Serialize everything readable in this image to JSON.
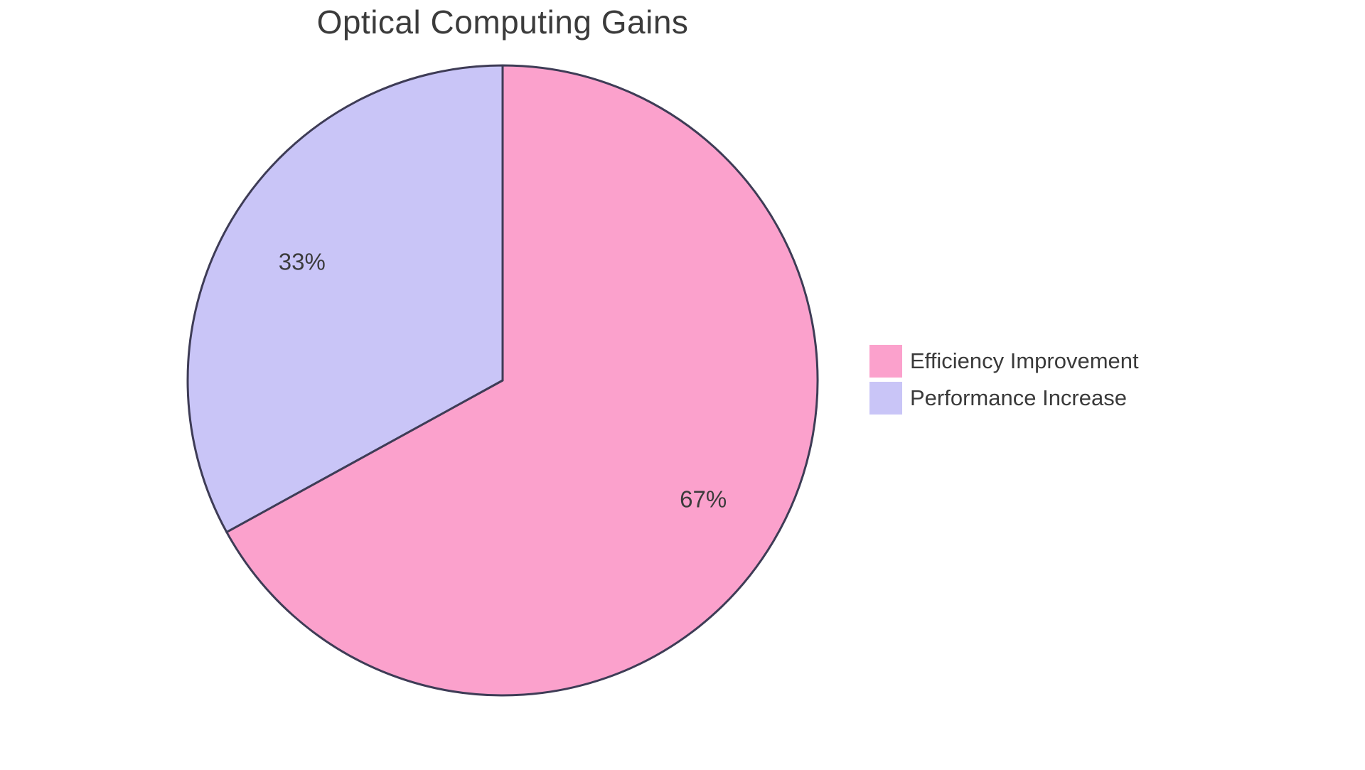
{
  "chart_data": {
    "type": "pie",
    "title": "Optical Computing Gains",
    "categories": [
      "Efficiency Improvement",
      "Performance Increase"
    ],
    "values": [
      67,
      33
    ],
    "percent_labels": [
      "67%",
      "33%"
    ],
    "colors": [
      "#FBA1CC",
      "#C9C5F7"
    ],
    "slice_border_color": "#3E3C56",
    "label_color": "#3C3C3C",
    "title_color": "#3B3B3B",
    "legend_text_color": "#3A3A3A",
    "background": "#FFFFFF",
    "start_angle_deg_from_top": 0,
    "direction": "clockwise",
    "legend_position": "right",
    "grid": false
  }
}
